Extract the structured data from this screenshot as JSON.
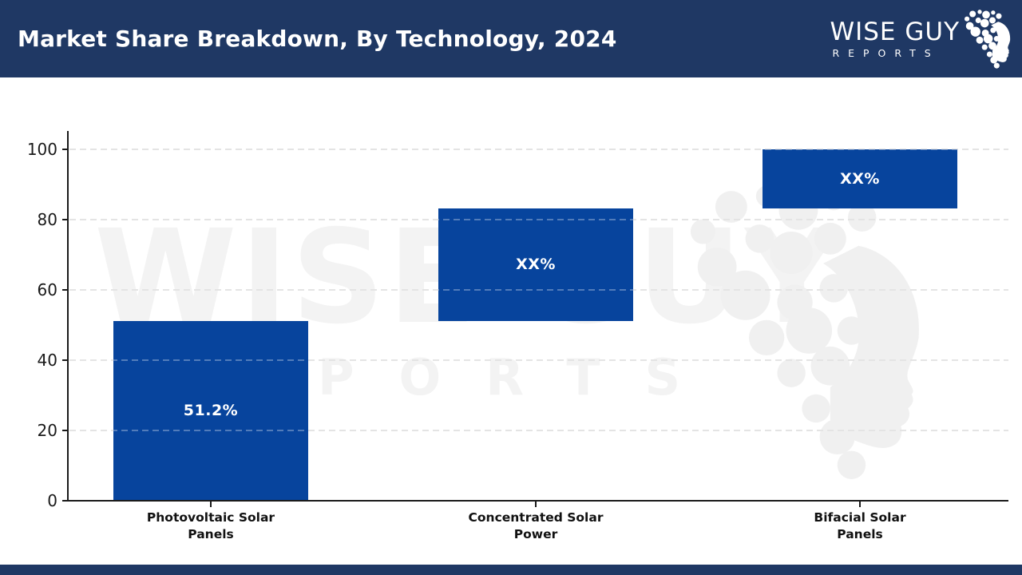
{
  "header": {
    "title": "Market Share Breakdown, By Technology, 2024",
    "logo": {
      "name_line": "WISE GUY",
      "reports_line": "REPORTS"
    }
  },
  "watermark": {
    "line1": "WISE GUY",
    "line2": "REPORTS"
  },
  "colors": {
    "header_bg": "#1F3864",
    "footer_bg": "#1F3864",
    "bar_fill": "#07449D",
    "bar_label_text": "#FFFFFF",
    "grid": "#D9D9D9",
    "axis": "#1A1A1A",
    "watermark": "#F3F3F3"
  },
  "chart_data": {
    "type": "bar",
    "variant": "floating-cumulative-share",
    "title": "Market Share Breakdown, By Technology, 2024",
    "categories": [
      {
        "line1": "Photovoltaic Solar",
        "line2": "Panels"
      },
      {
        "line1": "Concentrated Solar",
        "line2": "Power"
      },
      {
        "line1": "Bifacial Solar",
        "line2": "Panels"
      }
    ],
    "bars": [
      {
        "category": "Photovoltaic Solar Panels",
        "start": 0,
        "end": 51.2,
        "label": "51.2%"
      },
      {
        "category": "Concentrated Solar Power",
        "start": 51.2,
        "end": 83.2,
        "label": "XX%"
      },
      {
        "category": "Bifacial Solar Panels",
        "start": 83.2,
        "end": 100,
        "label": "XX%"
      }
    ],
    "ylabel": "",
    "xlabel": "",
    "ylim": [
      0,
      105
    ],
    "yticks": [
      0,
      20,
      40,
      60,
      80,
      100
    ],
    "grid": "horizontal-dashed",
    "legend": "none"
  }
}
